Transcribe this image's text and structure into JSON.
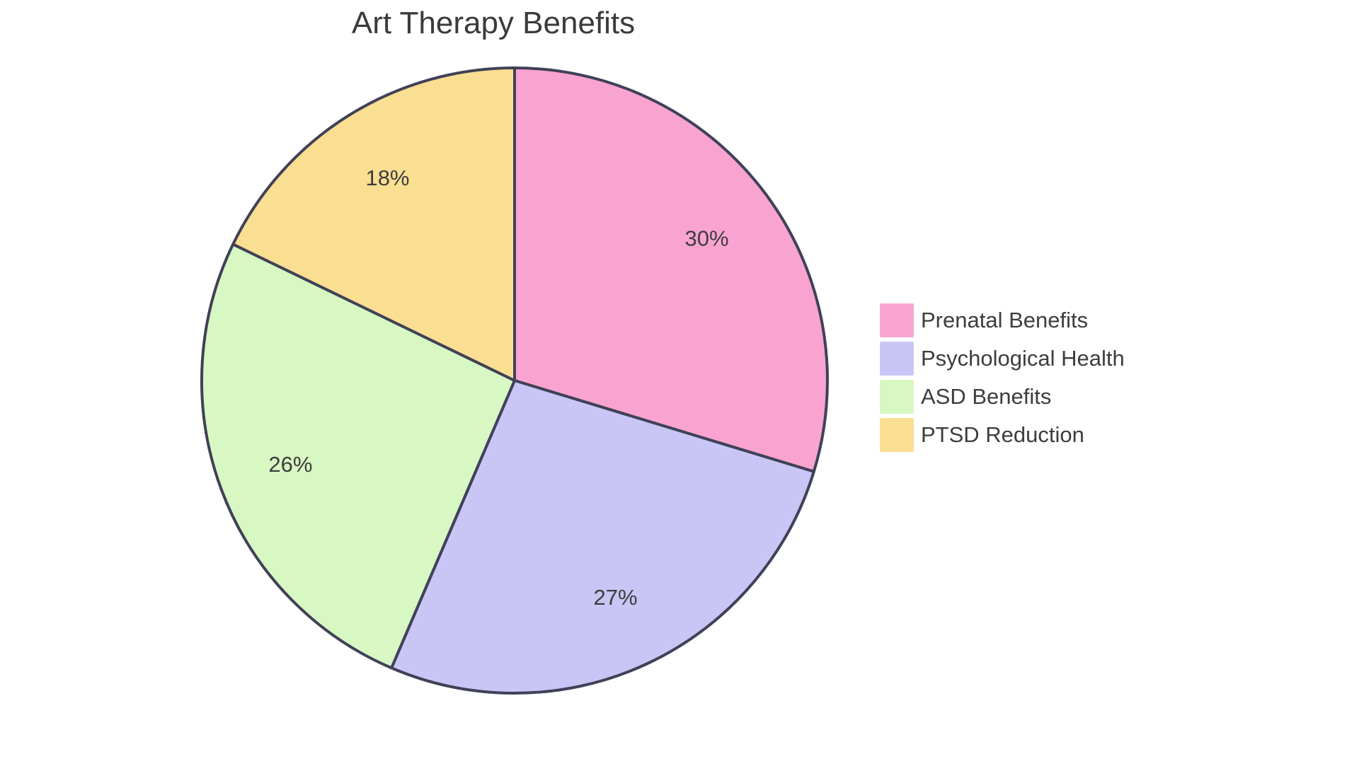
{
  "title": "Art Therapy Benefits",
  "colors": {
    "background": "#FFFFFF",
    "outline": "#404158",
    "title_text": "#3B3B3B",
    "label_text": "#3D3D3D"
  },
  "chart_data": {
    "type": "pie",
    "title": "Art Therapy Benefits",
    "legend_position": "right",
    "start_angle_deg": -90,
    "direction": "clockwise",
    "slices": [
      {
        "label": "Prenatal Benefits",
        "value": 30,
        "percent_label": "30%",
        "color": "#F9A4D0"
      },
      {
        "label": "Psychological Health",
        "value": 27,
        "percent_label": "27%",
        "color": "#C9C6F6"
      },
      {
        "label": "ASD Benefits",
        "value": 26,
        "percent_label": "26%",
        "color": "#D7F7C3"
      },
      {
        "label": "PTSD Reduction",
        "value": 18,
        "percent_label": "18%",
        "color": "#FADE92"
      }
    ]
  }
}
